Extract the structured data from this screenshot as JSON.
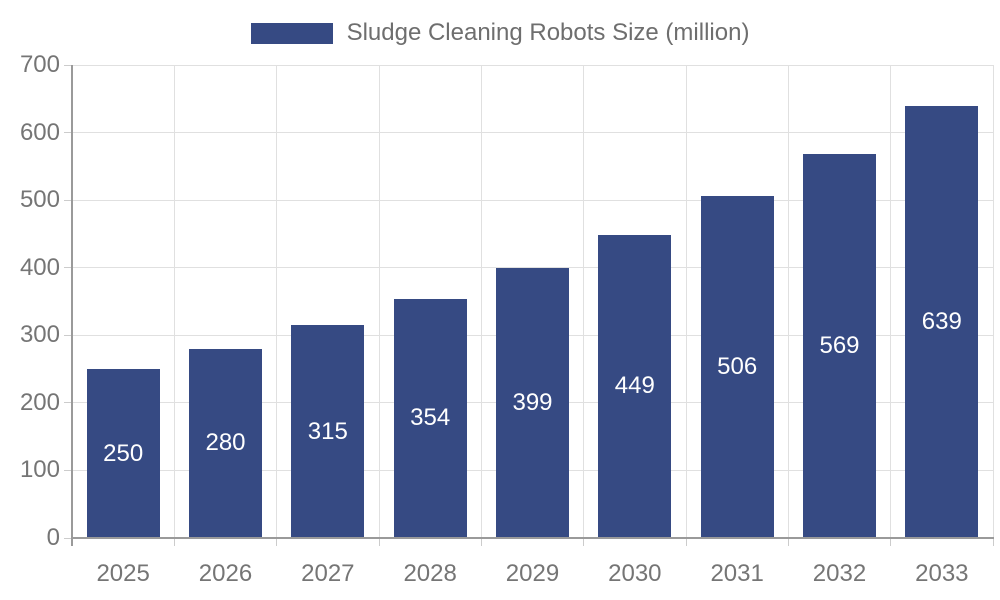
{
  "legend": {
    "label": "Sludge Cleaning Robots Size (million)"
  },
  "colors": {
    "bar": "#364a83",
    "grid": "#e0e0e0",
    "axis": "#9a9a9a",
    "tick": "#cccccc",
    "tick_label": "#757575",
    "bar_label": "#ffffff",
    "legend_text": "#6e6e6e"
  },
  "chart_data": {
    "type": "bar",
    "title": "Sludge Cleaning Robots Size (million)",
    "categories": [
      "2025",
      "2026",
      "2027",
      "2028",
      "2029",
      "2030",
      "2031",
      "2032",
      "2033"
    ],
    "values": [
      250,
      280,
      315,
      354,
      399,
      449,
      506,
      569,
      639
    ],
    "xlabel": "",
    "ylabel": "",
    "ylim": [
      0,
      700
    ],
    "ytick_interval": 100,
    "ytick_labels": [
      "0",
      "100",
      "200",
      "300",
      "400",
      "500",
      "600",
      "700"
    ],
    "grid": true,
    "legend_position": "top-center",
    "value_labels": "inside-center"
  }
}
